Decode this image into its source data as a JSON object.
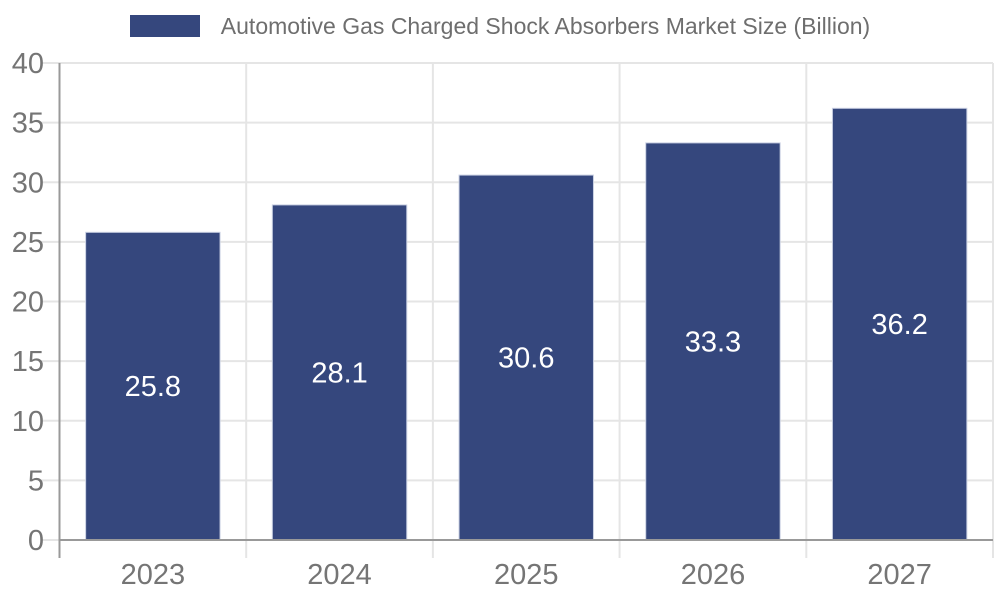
{
  "chart_data": {
    "type": "bar",
    "title": "Automotive Gas Charged Shock Absorbers Market Size (Billion)",
    "legend": {
      "position": "top",
      "label": "Automotive Gas Charged Shock Absorbers Market Size (Billion)"
    },
    "categories": [
      "2023",
      "2024",
      "2025",
      "2026",
      "2027"
    ],
    "values": [
      25.8,
      28.1,
      30.6,
      33.3,
      36.2
    ],
    "value_labels": [
      "25.8",
      "28.1",
      "30.6",
      "33.3",
      "36.2"
    ],
    "xlabel": "",
    "ylabel": "",
    "ylim": [
      0,
      40
    ],
    "yticks": [
      0,
      5,
      10,
      15,
      20,
      25,
      30,
      35,
      40
    ],
    "grid": "both",
    "value_labels_inside_bars": true
  },
  "colors": {
    "background": "#ffffff",
    "bar": "#35477d",
    "bar_border": "#c9d0e2",
    "grid": "#e5e5e5",
    "axis_line": "#999999",
    "tick_label": "#757575",
    "legend_text": "#6e6e6e",
    "value_label": "#ffffff"
  }
}
